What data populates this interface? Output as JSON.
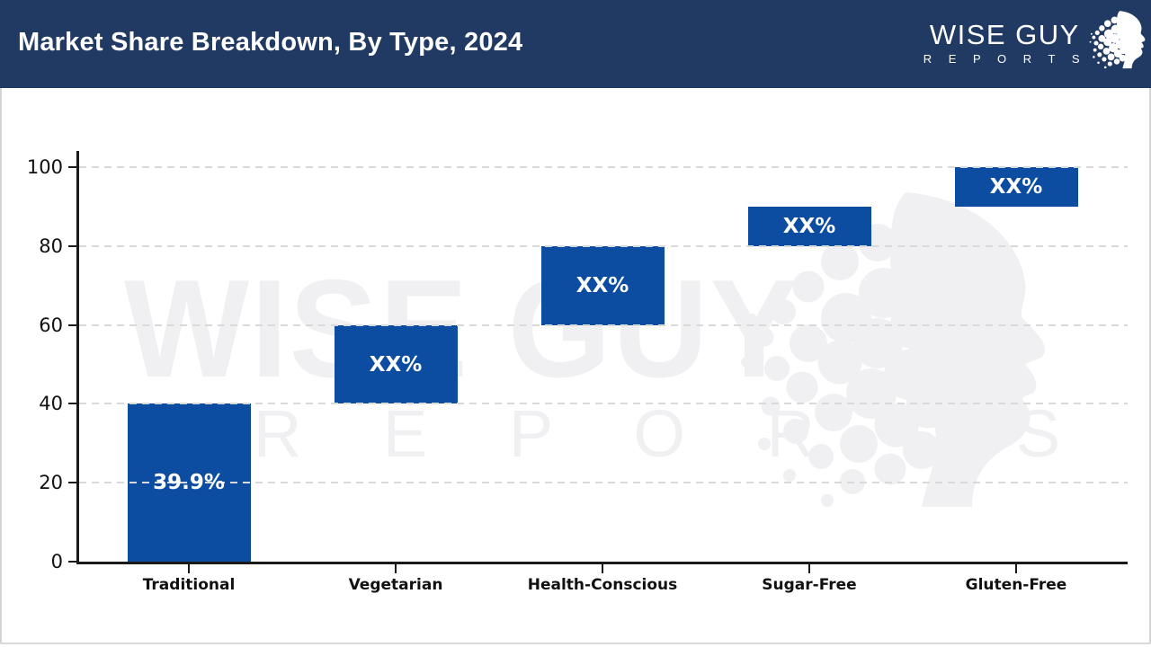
{
  "header": {
    "title": "Market Share Breakdown, By Type, 2024",
    "logo": {
      "name": "WISE GUY",
      "tagline": "R E P O R T S"
    }
  },
  "watermark": {
    "name": "WISE GUY",
    "tagline": "R E P O R T S"
  },
  "chart_data": {
    "type": "bar",
    "subtype": "waterfall",
    "title": "Market Share Breakdown, By Type, 2024",
    "categories": [
      "Traditional",
      "Vegetarian",
      "Health-Conscious",
      "Sugar-Free",
      "Gluten-Free"
    ],
    "segments": [
      {
        "category": "Traditional",
        "start": 0,
        "end": 40,
        "label": "39.9%"
      },
      {
        "category": "Vegetarian",
        "start": 40,
        "end": 60,
        "label": "XX%"
      },
      {
        "category": "Health-Conscious",
        "start": 60,
        "end": 80,
        "label": "XX%"
      },
      {
        "category": "Sugar-Free",
        "start": 80,
        "end": 90,
        "label": "XX%"
      },
      {
        "category": "Gluten-Free",
        "start": 90,
        "end": 100,
        "label": "XX%"
      }
    ],
    "ylim": [
      0,
      100
    ],
    "yticks": [
      0,
      20,
      40,
      60,
      80,
      100
    ],
    "grid": "horizontal-dashed",
    "legend": "none",
    "colors": {
      "bar": "#0D4DA1",
      "grid": "#D9D9D9",
      "axis": "#1A1A1A",
      "bar_label": "#FFFFFF",
      "header_bg": "#213A64",
      "watermark": "#F0F0F2"
    }
  }
}
